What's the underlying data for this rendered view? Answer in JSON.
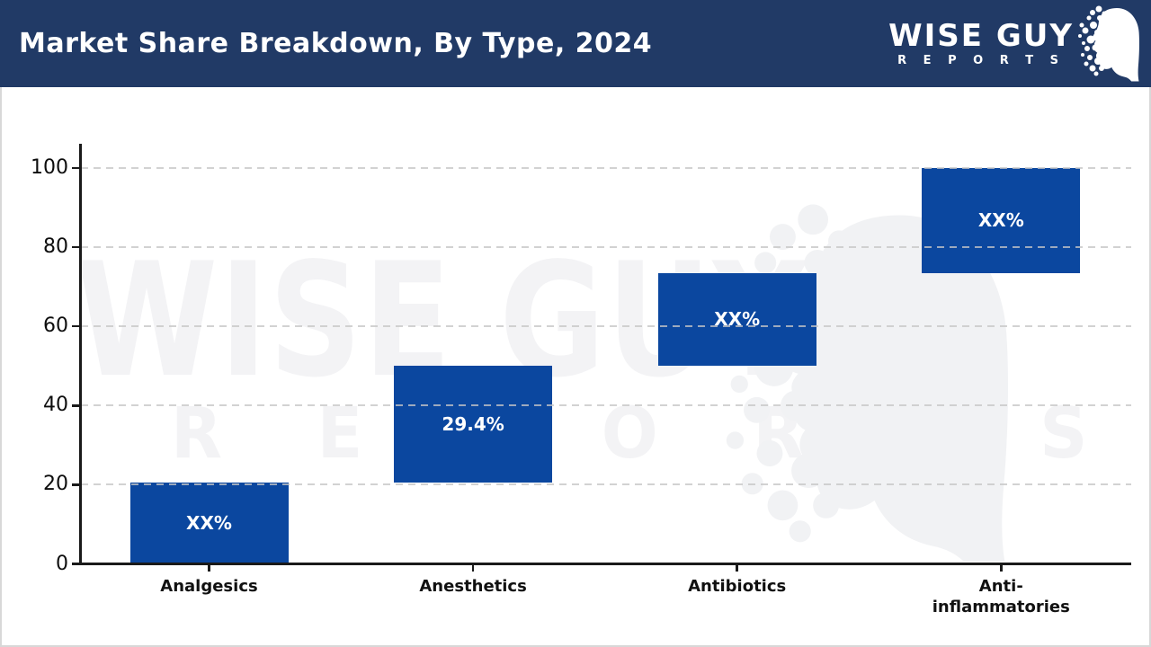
{
  "header": {
    "title": "Market Share Breakdown, By Type, 2024",
    "logo": {
      "name": "WISE GUY",
      "tagline": "R E P O R T S"
    }
  },
  "watermark": {
    "name": "WISE GUY",
    "tagline": "R E P O R T S"
  },
  "colors": {
    "header_bg": "#213a66",
    "bar": "#0b479f",
    "bar_label": "#ffffff",
    "axis": "#1a1a1a",
    "grid": "#d8d8d8",
    "watermark": "#f3f3f5"
  },
  "chart_data": {
    "type": "bar",
    "subtype": "waterfall",
    "title": "Market Share Breakdown, By Type, 2024",
    "categories": [
      "Analgesics",
      "Anesthetics",
      "Antibiotics",
      "Anti-\ninflammatories"
    ],
    "segments": [
      {
        "category": "Analgesics",
        "start": 0,
        "end": 20.6,
        "value": 20.6,
        "label": "XX%"
      },
      {
        "category": "Anesthetics",
        "start": 20.6,
        "end": 50.0,
        "value": 29.4,
        "label": "29.4%"
      },
      {
        "category": "Antibiotics",
        "start": 50.0,
        "end": 73.5,
        "value": 23.5,
        "label": "XX%"
      },
      {
        "category": "Anti-inflammatories",
        "start": 73.5,
        "end": 100.0,
        "value": 26.5,
        "label": "XX%"
      }
    ],
    "y_ticks": [
      0,
      20,
      40,
      60,
      80,
      100
    ],
    "ylim": [
      0,
      106
    ],
    "xlabel": "",
    "ylabel": "",
    "grid": "horizontal-dashed",
    "legend": "none",
    "bar_color": "#0b479f"
  }
}
